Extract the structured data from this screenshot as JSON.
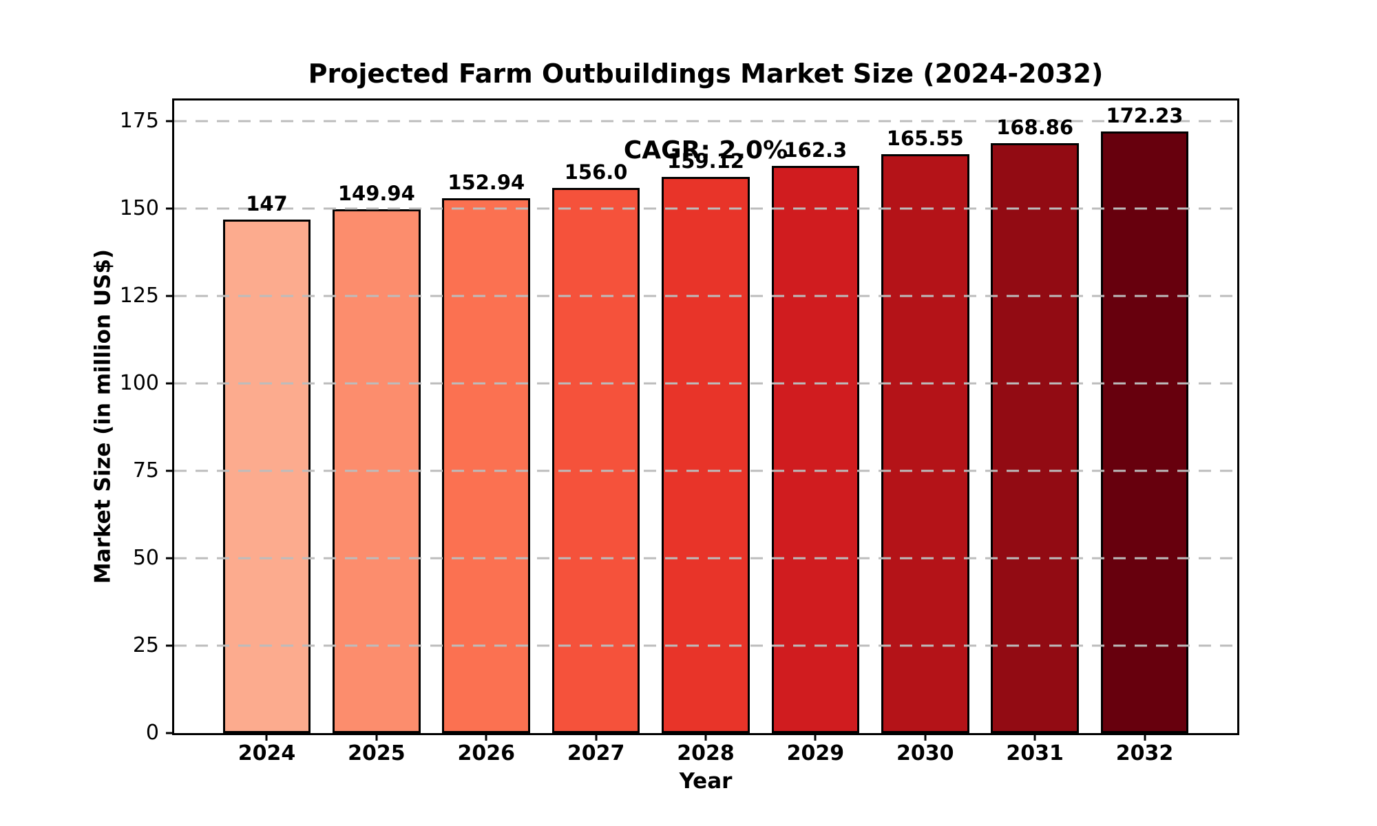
{
  "title": "Projected Farm Outbuildings Market Size (2024-2032)",
  "chart_data": {
    "type": "bar",
    "title": "Projected Farm Outbuildings Market Size (2024-2032)",
    "xlabel": "Year",
    "ylabel": "Market Size (in million US$)",
    "annotation": "CAGR: 2.0%",
    "categories": [
      "2024",
      "2025",
      "2026",
      "2027",
      "2028",
      "2029",
      "2030",
      "2031",
      "2032"
    ],
    "values": [
      147,
      149.94,
      152.94,
      156.0,
      159.12,
      162.3,
      165.55,
      168.86,
      172.23
    ],
    "value_labels": [
      "147",
      "149.94",
      "152.94",
      "156.0",
      "159.12",
      "162.3",
      "165.55",
      "168.86",
      "172.23"
    ],
    "bar_colors": [
      "#FCAB8E",
      "#FC8D6D",
      "#FB7151",
      "#F5523B",
      "#E83429",
      "#D01C1F",
      "#B41318",
      "#920B13",
      "#67000D"
    ],
    "yticks": [
      0,
      25,
      50,
      75,
      100,
      125,
      150,
      175
    ],
    "ylim": [
      0,
      181
    ],
    "xlim": [
      -0.84375,
      8.84375
    ],
    "bar_width_units": 0.8,
    "grid": "horizontal dashed, drawn above bars",
    "legend": "none",
    "colors": {
      "grid": "#bcbcbc",
      "axis": "#000000",
      "bar_edge": "#000000",
      "background": "#ffffff",
      "text": "#000000"
    }
  }
}
